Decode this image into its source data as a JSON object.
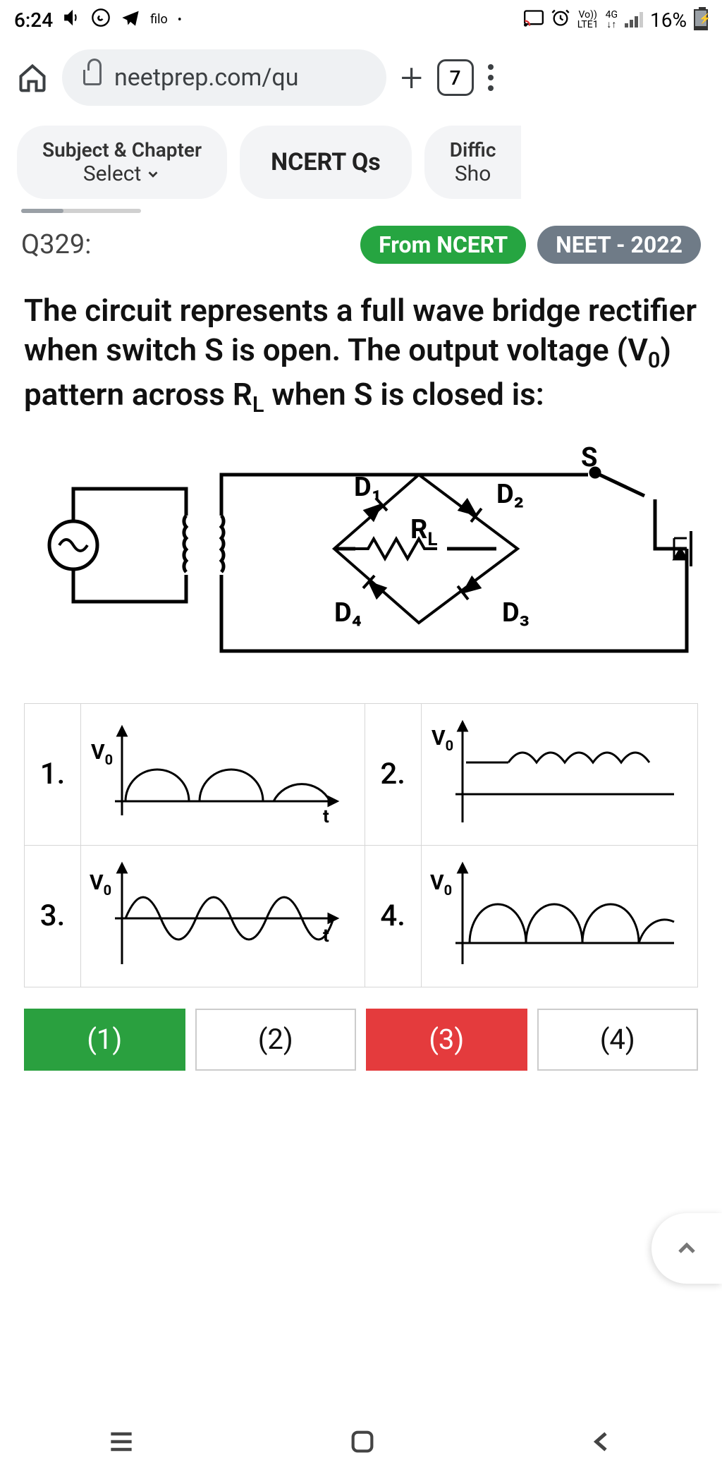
{
  "status": {
    "time": "6:24",
    "app": "filo",
    "net_top": "Vo))",
    "net_bot": "LTE1",
    "net_gen": "4G",
    "net_arrows": "↓↑",
    "battery": "16%"
  },
  "browser": {
    "url": "neetprep.com/qu",
    "tabs": "7"
  },
  "filters": {
    "chip1_title": "Subject & Chapter",
    "chip1_sub": "Select",
    "chip2": "NCERT Qs",
    "chip3_title": "Diffic",
    "chip3_sub": "Sho"
  },
  "question": {
    "num": "Q329:",
    "badge1": "From NCERT",
    "badge2": "NEET - 2022",
    "text_html": "The circuit represents a full wave bridge rectifier when switch S is open. The output voltage (V<sub>0</sub>) pattern across R<sub>L</sub> when S is closed is:"
  },
  "circuit": {
    "labels": {
      "S": "S",
      "D1": "D₁",
      "D2": "D₂",
      "D3": "D₃",
      "D4": "D₄",
      "RL": "R",
      "RLsub": "L"
    }
  },
  "options": {
    "o1": "1.",
    "o2": "2.",
    "o3": "3.",
    "o4": "4.",
    "axis_y": "V",
    "axis_ysub": "0",
    "axis_x": "t"
  },
  "answers": {
    "a1": "(1)",
    "a2": "(2)",
    "a3": "(3)",
    "a4": "(4)",
    "correct_color": "#2aa03f",
    "wrong_color": "#e43b3d"
  }
}
